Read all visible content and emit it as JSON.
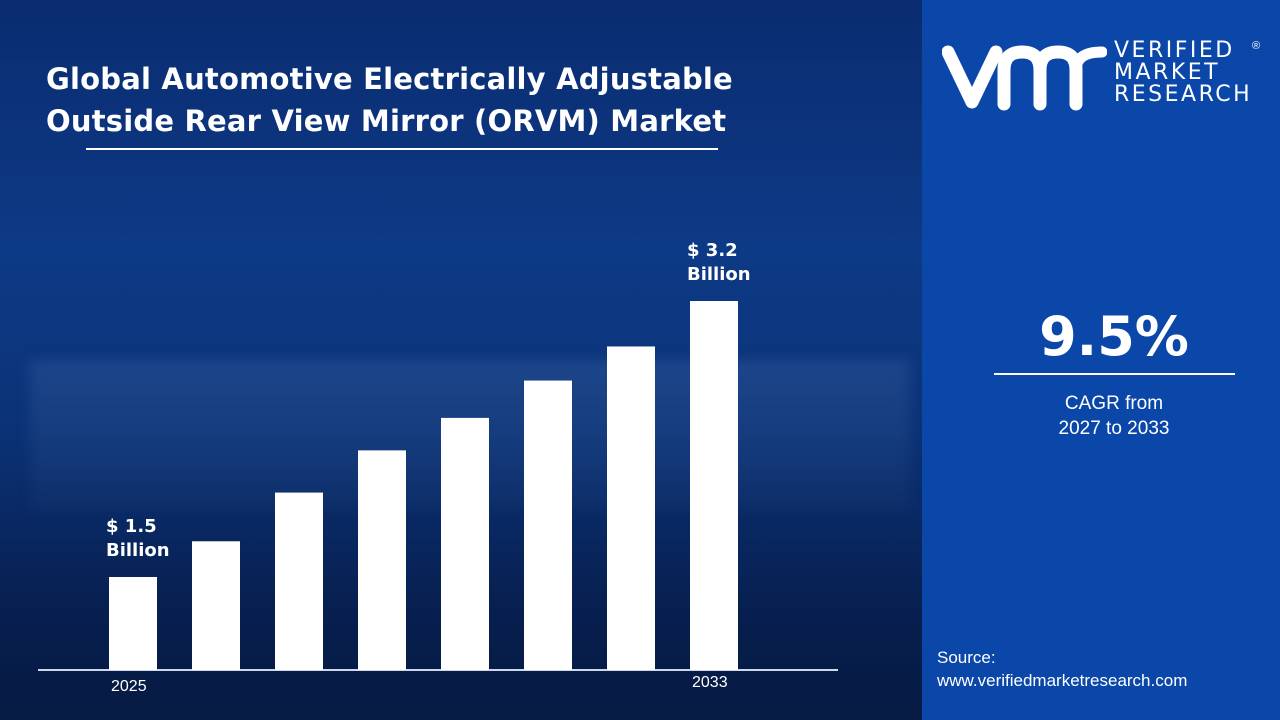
{
  "title": {
    "line1": "Global Automotive Electrically Adjustable",
    "line2": "Outside Rear View Mirror (ORVM) Market"
  },
  "brand": {
    "logo_mark": "vmr",
    "line1": "VERIFIED",
    "line2": "MARKET",
    "line3": "RESEARCH",
    "registered": "®"
  },
  "colors": {
    "panel": "#0a47a9",
    "bars": "#ffffff",
    "background": "#0b3276"
  },
  "cagr": {
    "value": "9.5%",
    "label_line1": "CAGR from",
    "label_line2": "2027 to 2033"
  },
  "source": {
    "label": "Source:",
    "url": "www.verifiedmarketresearch.com"
  },
  "chart_data": {
    "type": "bar",
    "title": "Global Automotive Electrically Adjustable Outside Rear View Mirror (ORVM) Market",
    "categories": [
      "2025",
      "",
      "",
      "",
      "",
      "",
      "",
      "2033"
    ],
    "values": [
      1.5,
      1.72,
      2.02,
      2.28,
      2.48,
      2.71,
      2.92,
      3.2
    ],
    "unit": "USD Billion",
    "annotations": [
      {
        "index": 0,
        "line1": "$ 1.5",
        "line2": "Billion"
      },
      {
        "index": 7,
        "line1": "$ 3.2",
        "line2": "Billion"
      }
    ],
    "xlabel": "",
    "ylabel": "",
    "ylim": [
      0.93,
      3.2
    ],
    "grid": false,
    "legend": "none"
  }
}
